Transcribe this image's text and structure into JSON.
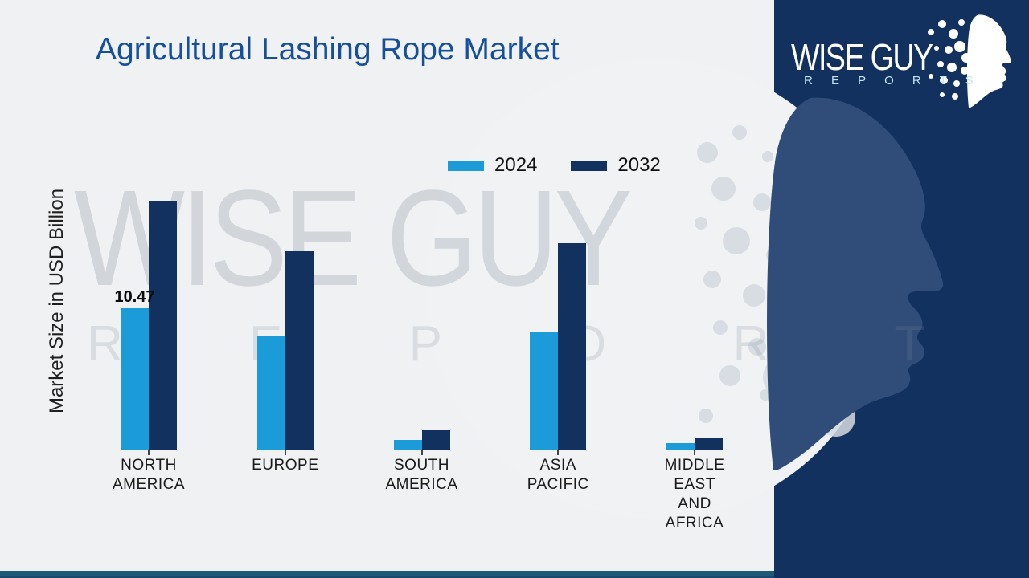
{
  "page": {
    "background": "#F0F1F2"
  },
  "title": {
    "text": "Agricultural Lashing Rope Market",
    "color": "#164F9C"
  },
  "y_axis_label": "Market Size in USD Billion",
  "legend": {
    "items": [
      {
        "label": "2024",
        "color": "#1B9CD8"
      },
      {
        "label": "2032",
        "color": "#12315F"
      }
    ]
  },
  "chart_data": {
    "type": "bar",
    "unit": "USD Billion",
    "title": "Agricultural Lashing Rope Market",
    "xlabel": "",
    "ylabel": "Market Size in USD Billion",
    "legend_position": "top",
    "grid": false,
    "ylim": [
      0,
      20
    ],
    "categories": [
      "NORTH AMERICA",
      "EUROPE",
      "SOUTH AMERICA",
      "ASIA PACIFIC",
      "MIDDLE EAST AND AFRICA"
    ],
    "category_lines": [
      [
        "NORTH",
        "AMERICA"
      ],
      [
        "EUROPE"
      ],
      [
        "SOUTH",
        "AMERICA"
      ],
      [
        "ASIA",
        "PACIFIC"
      ],
      [
        "MIDDLE",
        "EAST",
        "AND",
        "AFRICA"
      ]
    ],
    "series": [
      {
        "name": "2024",
        "color": "#1B9CD8",
        "values": [
          10.47,
          8.4,
          0.77,
          8.76,
          0.53
        ]
      },
      {
        "name": "2032",
        "color": "#12315F",
        "values": [
          18.35,
          14.68,
          1.48,
          15.27,
          0.95
        ]
      }
    ],
    "data_labels": [
      {
        "series": "2024",
        "category_index": 0,
        "text": "10.47"
      }
    ]
  },
  "watermark": {
    "line1": "WISE GUY",
    "line2": "R E P O R T S"
  },
  "brand_panel": {
    "background": "#12315E",
    "logo_line1": "WISE GUY",
    "logo_line2": "R E P O R T S",
    "bottom_bar_color": "#1E5A78"
  }
}
